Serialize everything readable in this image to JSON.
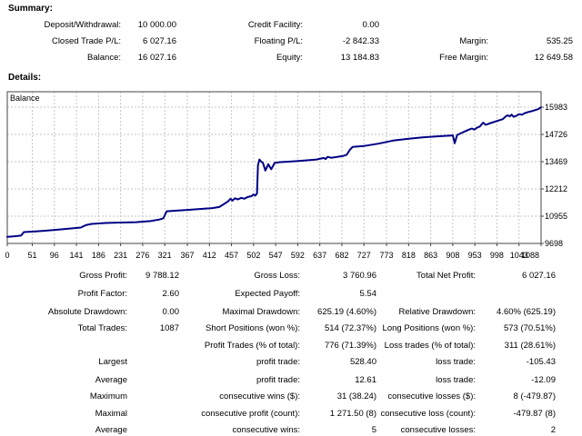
{
  "summary": {
    "heading": "Summary:",
    "rows": [
      [
        "Deposit/Withdrawal:",
        "10 000.00",
        "Credit Facility:",
        "0.00",
        "",
        ""
      ],
      [
        "Closed Trade P/L:",
        "6 027.16",
        "Floating P/L:",
        "-2 842.33",
        "Margin:",
        "535.25"
      ],
      [
        "Balance:",
        "16 027.16",
        "Equity:",
        "13 184.83",
        "Free Margin:",
        "12 649.58"
      ]
    ]
  },
  "details": {
    "heading": "Details:",
    "rows": [
      [
        "Gross Profit:",
        "9 788.12",
        "Gross Loss:",
        "3 760.96",
        "Total Net Profit:",
        "6 027.16"
      ],
      [
        "Profit Factor:",
        "2.60",
        "Expected Payoff:",
        "5.54",
        "",
        ""
      ],
      [
        "Absolute Drawdown:",
        "0.00",
        "Maximal Drawdown:",
        "625.19 (4.60%)",
        "Relative Drawdown:",
        "4.60% (625.19)"
      ],
      [
        "Total Trades:",
        "1087",
        "Short Positions (won %):",
        "514 (72.37%)",
        "Long Positions (won %):",
        "573 (70.51%)"
      ],
      [
        "",
        "",
        "Profit Trades (% of total):",
        "776 (71.39%)",
        "Loss trades (% of total):",
        "311 (28.61%)"
      ],
      [
        "Largest",
        "",
        "profit trade:",
        "528.40",
        "loss trade:",
        "-105.43"
      ],
      [
        "Average",
        "",
        "profit trade:",
        "12.61",
        "loss trade:",
        "-12.09"
      ],
      [
        "Maximum",
        "",
        "consecutive wins ($):",
        "31 (38.24)",
        "consecutive losses ($):",
        "8 (-479.87)"
      ],
      [
        "Maximal",
        "",
        "consecutive profit (count):",
        "1 271.50 (8)",
        "consecutive loss (count):",
        "-479.87 (8)"
      ],
      [
        "Average",
        "",
        "consecutive wins:",
        "5",
        "consecutive losses:",
        "2"
      ]
    ]
  },
  "chart_data": {
    "type": "line",
    "title": "Balance",
    "legend_position": "top-left-inside",
    "grid": true,
    "y_axis_side": "right",
    "xlim": [
      0,
      1088
    ],
    "ylim": [
      9698,
      16530
    ],
    "x_ticks": [
      0,
      51,
      96,
      141,
      186,
      231,
      276,
      321,
      367,
      412,
      457,
      502,
      547,
      592,
      637,
      682,
      727,
      773,
      818,
      863,
      908,
      953,
      998,
      1043,
      1088
    ],
    "y_ticks": [
      9698,
      10955,
      12212,
      13469,
      14726,
      15983
    ],
    "line_color": "#000084",
    "grid_color": "#c6c6c6",
    "border_color": "#444444",
    "series": [
      {
        "name": "Balance",
        "points": [
          [
            0,
            10000
          ],
          [
            12,
            10020
          ],
          [
            28,
            10060
          ],
          [
            34,
            10220
          ],
          [
            58,
            10250
          ],
          [
            80,
            10290
          ],
          [
            105,
            10340
          ],
          [
            130,
            10390
          ],
          [
            150,
            10430
          ],
          [
            160,
            10540
          ],
          [
            172,
            10600
          ],
          [
            200,
            10640
          ],
          [
            232,
            10660
          ],
          [
            262,
            10680
          ],
          [
            292,
            10730
          ],
          [
            310,
            10800
          ],
          [
            318,
            10860
          ],
          [
            325,
            11180
          ],
          [
            345,
            11210
          ],
          [
            370,
            11250
          ],
          [
            395,
            11290
          ],
          [
            418,
            11330
          ],
          [
            432,
            11380
          ],
          [
            442,
            11520
          ],
          [
            450,
            11640
          ],
          [
            455,
            11760
          ],
          [
            459,
            11670
          ],
          [
            464,
            11780
          ],
          [
            470,
            11730
          ],
          [
            477,
            11800
          ],
          [
            483,
            11760
          ],
          [
            490,
            11840
          ],
          [
            498,
            11880
          ],
          [
            502,
            11960
          ],
          [
            505,
            11900
          ],
          [
            509,
            12000
          ],
          [
            511,
            13320
          ],
          [
            514,
            13570
          ],
          [
            518,
            13460
          ],
          [
            521,
            13420
          ],
          [
            526,
            13060
          ],
          [
            532,
            13350
          ],
          [
            538,
            13120
          ],
          [
            545,
            13410
          ],
          [
            556,
            13450
          ],
          [
            580,
            13480
          ],
          [
            605,
            13520
          ],
          [
            630,
            13570
          ],
          [
            645,
            13640
          ],
          [
            649,
            13590
          ],
          [
            653,
            13690
          ],
          [
            660,
            13650
          ],
          [
            672,
            13690
          ],
          [
            684,
            13730
          ],
          [
            692,
            13790
          ],
          [
            698,
            14010
          ],
          [
            704,
            14150
          ],
          [
            726,
            14190
          ],
          [
            756,
            14300
          ],
          [
            786,
            14440
          ],
          [
            816,
            14520
          ],
          [
            846,
            14590
          ],
          [
            876,
            14640
          ],
          [
            904,
            14670
          ],
          [
            908,
            14690
          ],
          [
            912,
            14320
          ],
          [
            917,
            14700
          ],
          [
            930,
            14840
          ],
          [
            941,
            14950
          ],
          [
            947,
            15000
          ],
          [
            952,
            14950
          ],
          [
            957,
            15030
          ],
          [
            963,
            15090
          ],
          [
            970,
            15270
          ],
          [
            975,
            15170
          ],
          [
            985,
            15250
          ],
          [
            996,
            15330
          ],
          [
            1004,
            15390
          ],
          [
            1010,
            15430
          ],
          [
            1016,
            15560
          ],
          [
            1020,
            15610
          ],
          [
            1024,
            15560
          ],
          [
            1028,
            15640
          ],
          [
            1032,
            15540
          ],
          [
            1038,
            15590
          ],
          [
            1043,
            15660
          ],
          [
            1049,
            15640
          ],
          [
            1055,
            15710
          ],
          [
            1062,
            15760
          ],
          [
            1069,
            15800
          ],
          [
            1076,
            15850
          ],
          [
            1082,
            15890
          ],
          [
            1088,
            15980
          ]
        ]
      }
    ]
  }
}
